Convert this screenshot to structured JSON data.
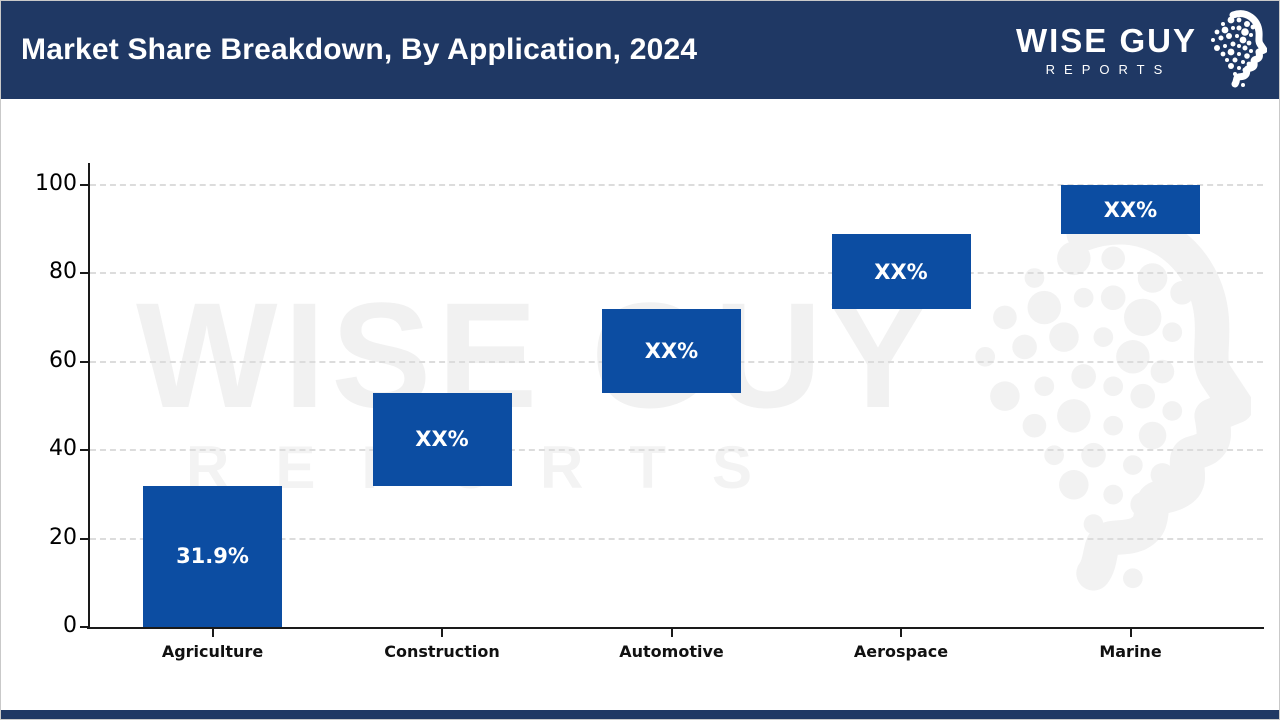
{
  "header": {
    "title": "Market Share Breakdown, By Application, 2024",
    "brand": {
      "line1": "WISE GUY",
      "line2": "REPORTS"
    },
    "bg_color": "#1f3864"
  },
  "watermark": {
    "line1": "WISE GUY",
    "line2": "REPORTS"
  },
  "chart_data": {
    "type": "bar",
    "subtype": "waterfall",
    "title": "Market Share Breakdown, By Application, 2024",
    "categories": [
      "Agriculture",
      "Construction",
      "Automotive",
      "Aerospace",
      "Marine"
    ],
    "segments": [
      {
        "category": "Agriculture",
        "start": 0,
        "end": 31.9,
        "label": "31.9%"
      },
      {
        "category": "Construction",
        "start": 31.9,
        "end": 53.0,
        "label": "XX%"
      },
      {
        "category": "Automotive",
        "start": 53.0,
        "end": 71.9,
        "label": "XX%"
      },
      {
        "category": "Aerospace",
        "start": 71.9,
        "end": 88.9,
        "label": "XX%"
      },
      {
        "category": "Marine",
        "start": 88.9,
        "end": 100,
        "label": "XX%"
      }
    ],
    "y_ticks": [
      0,
      20,
      40,
      60,
      80,
      100
    ],
    "ylim": [
      0,
      105
    ],
    "xlabel": "",
    "ylabel": "",
    "grid": "horizontal-dashed",
    "legend": "none",
    "bar_color": "#0c4da2",
    "bar_label_color": "#ffffff",
    "axis_color": "#1a1a1a"
  }
}
